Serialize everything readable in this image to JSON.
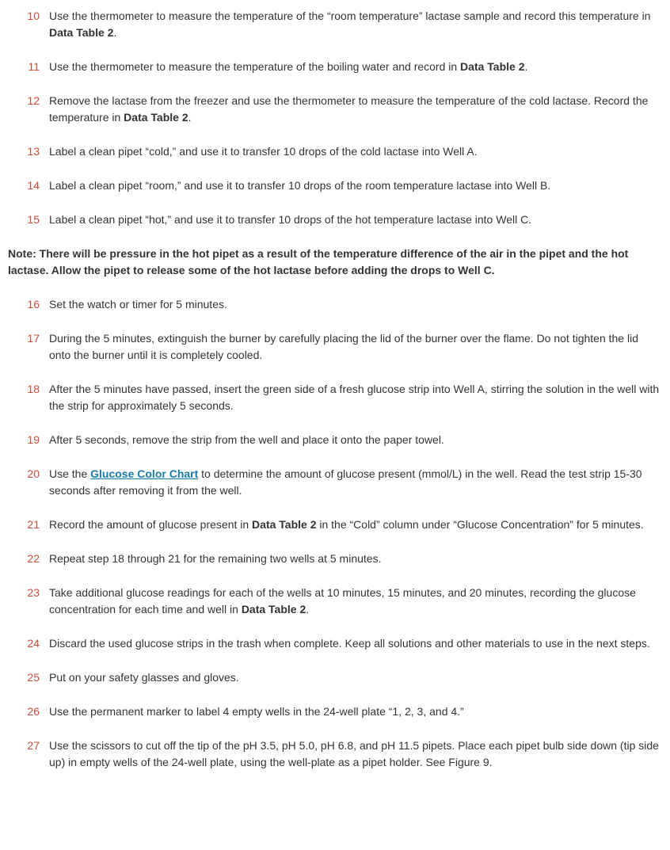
{
  "colors": {
    "step_number": "#c94d3a",
    "body_text": "#333333",
    "link": "#1a7ba8",
    "background": "#ffffff"
  },
  "typography": {
    "font_family": "Arial, Helvetica, sans-serif",
    "font_size_pt": 11,
    "line_height": 1.5
  },
  "steps_a": [
    {
      "num": "10",
      "parts": [
        {
          "t": "Use the thermometer to measure the temperature of the “room temperature” lactase sample and record this temperature in "
        },
        {
          "t": "Data Table 2",
          "bold": true
        },
        {
          "t": "."
        }
      ]
    },
    {
      "num": "11",
      "parts": [
        {
          "t": "Use the thermometer to measure the temperature of the boiling water and record in "
        },
        {
          "t": "Data Table 2",
          "bold": true
        },
        {
          "t": "."
        }
      ]
    },
    {
      "num": "12",
      "parts": [
        {
          "t": "Remove the lactase from the freezer and use the thermometer to measure the temperature of the cold lactase. Record the temperature in "
        },
        {
          "t": "Data Table 2",
          "bold": true
        },
        {
          "t": "."
        }
      ]
    },
    {
      "num": "13",
      "parts": [
        {
          "t": "Label a clean pipet “cold,” and use it to transfer 10 drops of the cold lactase into Well A."
        }
      ]
    },
    {
      "num": "14",
      "parts": [
        {
          "t": "Label a clean pipet “room,” and use it to transfer 10 drops of the room temperature lactase into Well B."
        }
      ]
    },
    {
      "num": "15",
      "parts": [
        {
          "t": "Label a clean pipet “hot,” and use it to transfer 10 drops of the hot temperature lactase into Well C."
        }
      ]
    }
  ],
  "note": "Note: There will be pressure in the hot pipet as a result of the temperature difference of the air in the pipet and the hot lactase. Allow the pipet to release some of the hot lactase before adding the drops to Well C.",
  "steps_b": [
    {
      "num": "16",
      "parts": [
        {
          "t": "Set the watch or timer for 5 minutes."
        }
      ]
    },
    {
      "num": "17",
      "parts": [
        {
          "t": "During the 5 minutes, extinguish the burner by carefully placing the lid of the burner over the flame. Do not tighten the lid onto the burner until it is completely cooled."
        }
      ]
    },
    {
      "num": "18",
      "parts": [
        {
          "t": "After the 5 minutes have passed, insert the green side of a fresh glucose strip into Well A, stirring the solution in the well with the strip for approximately 5 seconds."
        }
      ]
    },
    {
      "num": "19",
      "parts": [
        {
          "t": "After 5 seconds, remove the strip from the well and place it onto the paper towel."
        }
      ]
    },
    {
      "num": "20",
      "parts": [
        {
          "t": "Use the "
        },
        {
          "t": "Glucose Color Chart",
          "link": true
        },
        {
          "t": " to determine the amount of glucose present (mmol/L) in the well. Read the test strip 15-30 seconds after removing it from the well."
        }
      ]
    },
    {
      "num": "21",
      "parts": [
        {
          "t": "Record the amount of glucose present in "
        },
        {
          "t": "Data Table 2",
          "bold": true
        },
        {
          "t": " in the “Cold” column under “Glucose Concentration” for 5 minutes."
        }
      ]
    },
    {
      "num": "22",
      "parts": [
        {
          "t": "Repeat step 18 through 21 for the remaining two wells at 5 minutes."
        }
      ]
    },
    {
      "num": "23",
      "parts": [
        {
          "t": "Take additional glucose readings for each of the wells at 10 minutes, 15 minutes, and 20 minutes, recording the glucose concentration for each time and well in "
        },
        {
          "t": "Data Table 2",
          "bold": true
        },
        {
          "t": "."
        }
      ]
    },
    {
      "num": "24",
      "parts": [
        {
          "t": "Discard the used glucose strips in the trash when complete. Keep all solutions and other materials to use in the next steps."
        }
      ]
    },
    {
      "num": "25",
      "parts": [
        {
          "t": "Put on your safety glasses and gloves."
        }
      ]
    },
    {
      "num": "26",
      "parts": [
        {
          "t": "Use the permanent marker to label 4 empty wells in the 24-well plate “1, 2, 3, and 4.”"
        }
      ]
    },
    {
      "num": "27",
      "parts": [
        {
          "t": "Use the scissors to cut off the tip of the pH 3.5, pH 5.0, pH 6.8, and pH 11.5 pipets. Place each pipet bulb side down (tip side up) in empty wells of the 24-well plate, using the well-plate as a pipet holder. See Figure 9."
        }
      ]
    }
  ]
}
